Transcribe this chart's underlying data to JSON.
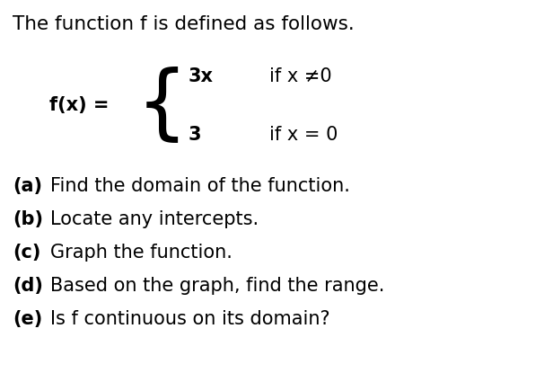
{
  "background_color": "#ffffff",
  "title_text": "The function f is defined as follows.",
  "title_fontsize": 15.5,
  "fx_label": "f(x) =",
  "fx_fontsize": 15,
  "case1_expr": "3x",
  "case1_cond": "if x ≠0",
  "case2_expr": "3",
  "case2_cond": "if x = 0",
  "case_fontsize": 15,
  "parts": [
    {
      "label": "(a)",
      "text": " Find the domain of the function."
    },
    {
      "label": "(b)",
      "text": " Locate any intercepts."
    },
    {
      "label": "(c)",
      "text": " Graph the function."
    },
    {
      "label": "(d)",
      "text": " Based on the graph, find the range."
    },
    {
      "label": "(e)",
      "text": " Is f continuous on its domain?"
    }
  ],
  "parts_fontsize": 15,
  "text_color": "#000000"
}
